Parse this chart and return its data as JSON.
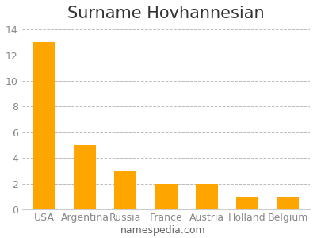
{
  "title": "Surname Hovhannesian",
  "categories": [
    "USA",
    "Argentina",
    "Russia",
    "France",
    "Austria",
    "Holland",
    "Belgium"
  ],
  "values": [
    13,
    5,
    3,
    2,
    2,
    1,
    1
  ],
  "bar_color": "#FFA500",
  "ylim": [
    0,
    14.2
  ],
  "yticks": [
    0,
    2,
    4,
    6,
    8,
    10,
    12,
    14
  ],
  "background_color": "#ffffff",
  "grid_color": "#bbbbbb",
  "title_fontsize": 15,
  "tick_fontsize": 9,
  "xtick_fontsize": 9,
  "watermark": "namespedia.com",
  "watermark_fontsize": 9
}
